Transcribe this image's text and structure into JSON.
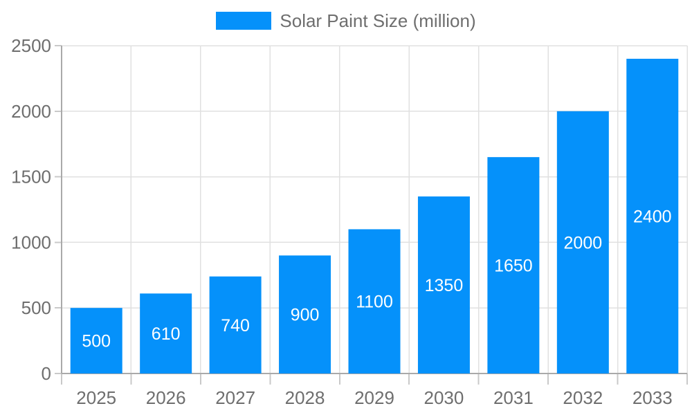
{
  "chart_data": {
    "type": "bar",
    "title": "",
    "legend_label": "Solar Paint Size (million)",
    "legend_position": "top-center",
    "categories": [
      "2025",
      "2026",
      "2027",
      "2028",
      "2029",
      "2030",
      "2031",
      "2032",
      "2033"
    ],
    "values": [
      500,
      610,
      740,
      900,
      1100,
      1350,
      1650,
      2000,
      2400
    ],
    "xlabel": "",
    "ylabel": "",
    "ylim": [
      0,
      2500
    ],
    "ytick_step": 500,
    "ytick_labels": [
      "0",
      "500",
      "1000",
      "1500",
      "2000",
      "2500"
    ],
    "grid": true,
    "bar_labels_inside": true,
    "colors": {
      "bar": "#0591fa",
      "bar_label_text": "#ffffff",
      "grid_line": "#e0e0e0",
      "tick_line": "#c9c9c9",
      "axis_line": "#a9a9a9",
      "axis_text": "#6e6e6e",
      "background": "#ffffff"
    }
  }
}
